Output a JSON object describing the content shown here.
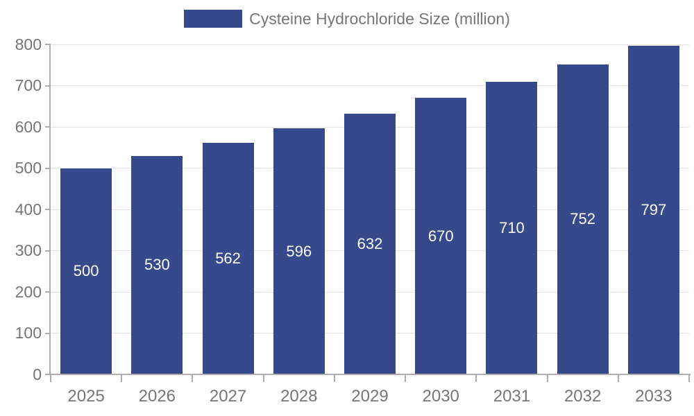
{
  "chart_data": {
    "type": "bar",
    "title": "Cysteine Hydrochloride Size (million)",
    "categories": [
      "2025",
      "2026",
      "2027",
      "2028",
      "2029",
      "2030",
      "2031",
      "2032",
      "2033"
    ],
    "series": [
      {
        "name": "Cysteine Hydrochloride Size (million)",
        "values": [
          500,
          530,
          562,
          596,
          632,
          670,
          710,
          752,
          797
        ]
      }
    ],
    "xlabel": "",
    "ylabel": "",
    "ylim": [
      0,
      800
    ],
    "yticks": [
      0,
      100,
      200,
      300,
      400,
      500,
      600,
      700,
      800
    ],
    "grid": "horizontal",
    "legend_position": "top-center",
    "bar_value_labels_shown": true
  },
  "colors": {
    "bar": "#36498b",
    "bar_value_text": "#ffffff",
    "gridline": "#e2e2e2",
    "axis_line": "#adadad",
    "tick_label": "#757575",
    "legend_text": "#757575",
    "background": "#ffffff"
  }
}
